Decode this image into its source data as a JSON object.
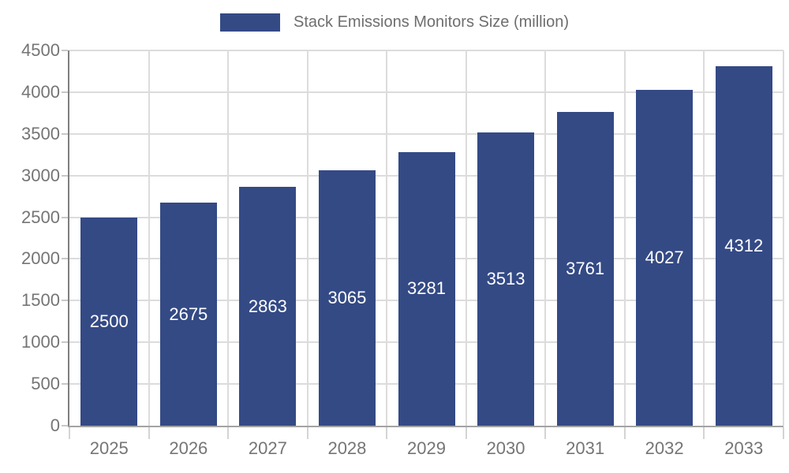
{
  "legend": {
    "label": "Stack Emissions Monitors Size (million)"
  },
  "chart_data": {
    "type": "bar",
    "title": "",
    "xlabel": "",
    "ylabel": "",
    "series_name": "Stack Emissions Monitors Size (million)",
    "categories": [
      "2025",
      "2026",
      "2027",
      "2028",
      "2029",
      "2030",
      "2031",
      "2032",
      "2033"
    ],
    "values": [
      2500,
      2675,
      2863,
      3065,
      3281,
      3513,
      3761,
      4027,
      4312
    ],
    "value_labels": [
      "2500",
      "2675",
      "2863",
      "3065",
      "3281",
      "3513",
      "3761",
      "4027",
      "4312"
    ],
    "ylim": [
      0,
      4500
    ],
    "yticks": [
      0,
      500,
      1000,
      1500,
      2000,
      2500,
      3000,
      3500,
      4000,
      4500
    ],
    "ytick_labels": [
      "0",
      "500",
      "1000",
      "1500",
      "2000",
      "2500",
      "3000",
      "3500",
      "4000",
      "4500"
    ],
    "grid": true,
    "legend_position": "top-center",
    "bar_color": "#344a85",
    "value_label_color": "#ffffff",
    "tick_label_color": "#757575",
    "grid_color": "#dcdcdc",
    "axis_color": "#7f7f7f"
  }
}
